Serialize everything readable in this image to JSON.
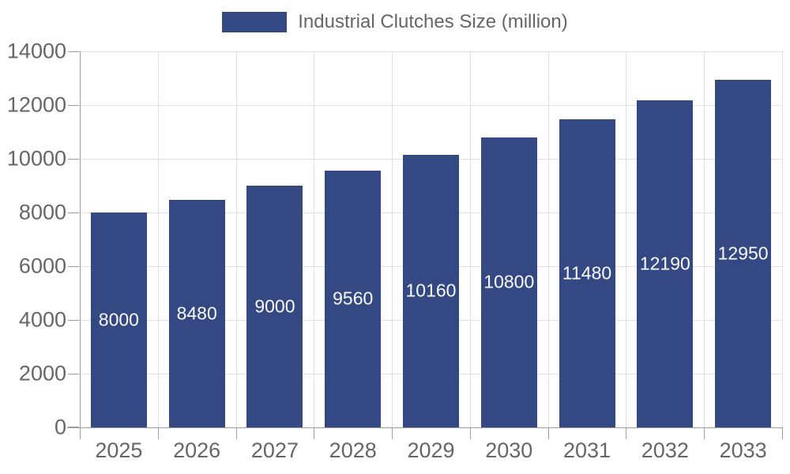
{
  "chart_data": {
    "type": "bar",
    "title": "",
    "series_name": "Industrial Clutches Size (million)",
    "categories": [
      "2025",
      "2026",
      "2027",
      "2028",
      "2029",
      "2030",
      "2031",
      "2032",
      "2033"
    ],
    "values": [
      8000,
      8480,
      9000,
      9560,
      10160,
      10800,
      11480,
      12190,
      12950
    ],
    "xlabel": "",
    "ylabel": "",
    "ylim": [
      0,
      14000
    ],
    "ytick_step": 2000,
    "yticks": [
      0,
      2000,
      4000,
      6000,
      8000,
      10000,
      12000,
      14000
    ],
    "grid": true,
    "bar_labels_visible": true,
    "legend_position": "top-center"
  },
  "colors": {
    "bar": "#344983",
    "bar_label": "#fafafa",
    "axis_label": "#666666",
    "legend_text": "#666666",
    "gridline": "#e0e0e0",
    "axis_line": "#9e9e9e",
    "background": "#ffffff"
  }
}
